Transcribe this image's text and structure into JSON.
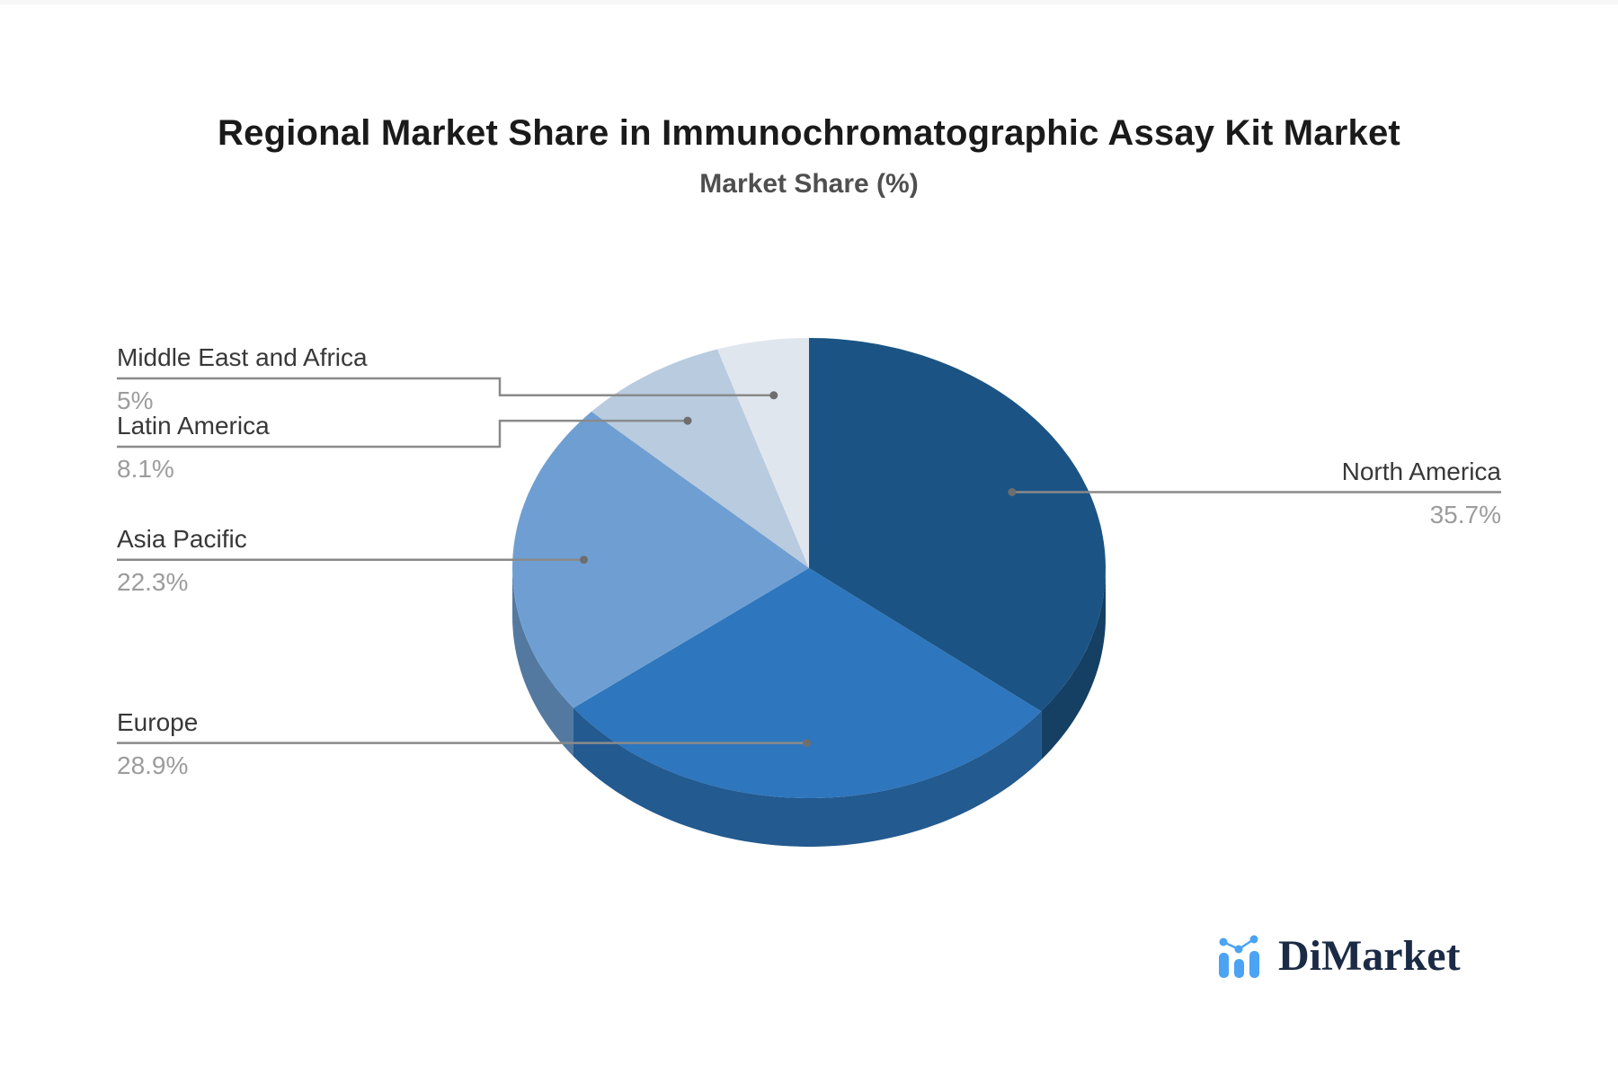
{
  "header": {
    "title": "Regional Market Share in Immunochromatographic Assay Kit Market",
    "subtitle": "Market Share (%)"
  },
  "chart_data": {
    "type": "pie",
    "title": "Regional Market Share in Immunochromatographic Assay Kit Market",
    "subtitle": "Market Share (%)",
    "unit": "%",
    "style": "3d-pie-with-callouts",
    "start_angle_deg": 0,
    "direction": "clockwise",
    "legend": "none",
    "slices": [
      {
        "label": "North America",
        "value": 35.7,
        "value_label": "35.7%",
        "color": "#1b5484",
        "callout_side": "right"
      },
      {
        "label": "Europe",
        "value": 28.9,
        "value_label": "28.9%",
        "color": "#2e76bd",
        "callout_side": "left"
      },
      {
        "label": "Asia Pacific",
        "value": 22.3,
        "value_label": "22.3%",
        "color": "#6f9fd2",
        "callout_side": "left"
      },
      {
        "label": "Latin America",
        "value": 8.1,
        "value_label": "8.1%",
        "color": "#b8cbdf",
        "callout_side": "left"
      },
      {
        "label": "Middle East and Africa",
        "value": 5,
        "value_label": "5%",
        "color": "#dfe6ee",
        "callout_side": "left"
      }
    ]
  },
  "colors": {
    "title_text": "#1a1a1a",
    "subtitle_text": "#4f4f4f",
    "label_text": "#383838",
    "value_text": "#9c9c9c",
    "connector_line": "#8a8a8a",
    "connector_dot": "#6e6e6e",
    "logo_icon": "#4aa3f3",
    "logo_text": "#1c2b45"
  },
  "logo": {
    "text": "DiMarket",
    "icon": "bar-chart-with-trend-dots-icon"
  }
}
